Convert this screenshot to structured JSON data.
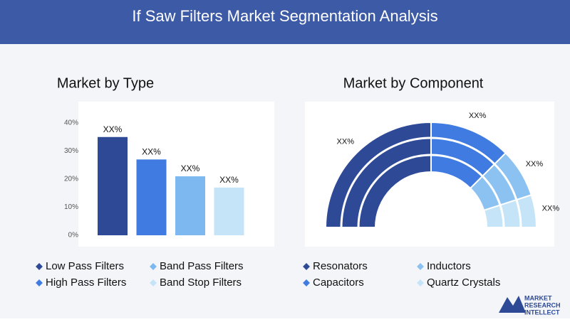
{
  "title": "If Saw Filters Market Segmentation Analysis",
  "logo": [
    "MARKET",
    "RESEARCH",
    "INTELLECT"
  ],
  "chart_data": [
    {
      "type": "bar",
      "title": "Market by Type",
      "categories": [
        "Low Pass Filters",
        "High Pass Filters",
        "Band Pass Filters",
        "Band Stop Filters"
      ],
      "values": [
        35,
        27,
        21,
        17
      ],
      "value_labels": [
        "XX%",
        "XX%",
        "XX%",
        "XX%"
      ],
      "colors": [
        "#2e4a97",
        "#3f7be0",
        "#7db9f0",
        "#c6e4f8"
      ],
      "ylim": [
        0,
        40
      ],
      "yticks": [
        {
          "value": 0,
          "label": "0%"
        },
        {
          "value": 10,
          "label": "10%"
        },
        {
          "value": 20,
          "label": "20%"
        },
        {
          "value": 30,
          "label": "30%"
        },
        {
          "value": 40,
          "label": "40%"
        }
      ],
      "grid": false
    },
    {
      "type": "pie",
      "title": "Market by Component",
      "categories": [
        "Resonators",
        "Capacitors",
        "Inductors",
        "Quartz Crystals"
      ],
      "values": [
        50,
        25,
        15,
        10
      ],
      "value_labels": [
        "XX%",
        "XX%",
        "XX%",
        "XX%"
      ],
      "colors": [
        "#2e4a97",
        "#3f7be0",
        "#8cc2f2",
        "#c6e4f8"
      ]
    }
  ]
}
